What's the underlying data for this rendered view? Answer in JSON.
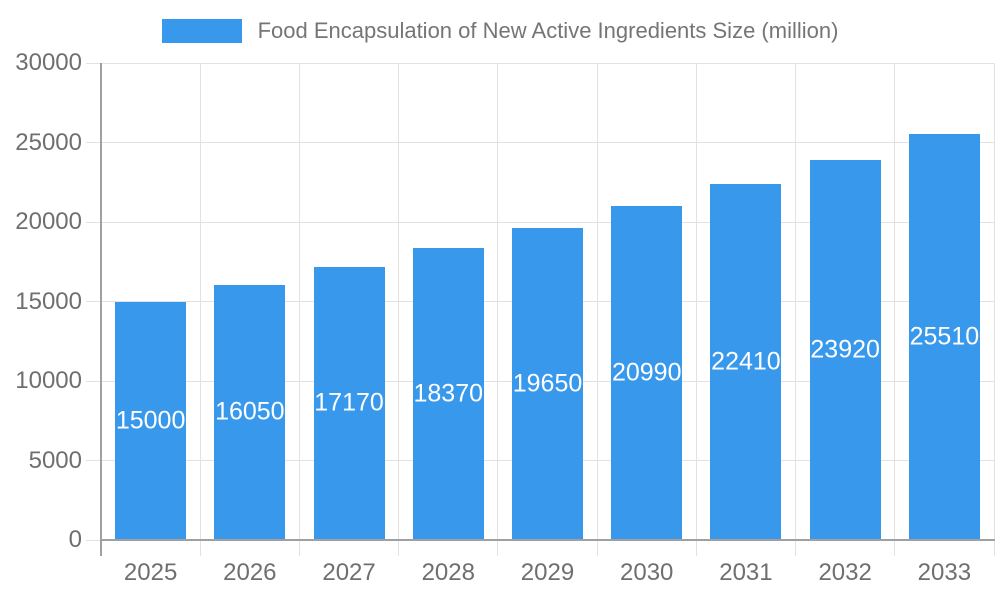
{
  "chart_data": {
    "type": "bar",
    "title": "Food Encapsulation of New Active Ingredients Size (million)",
    "categories": [
      "2025",
      "2026",
      "2027",
      "2028",
      "2029",
      "2030",
      "2031",
      "2032",
      "2033"
    ],
    "values": [
      15000,
      16050,
      17170,
      18370,
      19650,
      20990,
      22410,
      23920,
      25510
    ],
    "xlabel": "",
    "ylabel": "",
    "ylim": [
      0,
      30000
    ],
    "yticks": [
      0,
      5000,
      10000,
      15000,
      20000,
      25000,
      30000
    ],
    "grid": "both",
    "legend_position": "top",
    "bar_labels_inside": true,
    "colors": {
      "bar": "#3898EC",
      "bar_label_text": "#FFFFFF",
      "axis_label_text": "#6F6F6F",
      "title_text": "#757575",
      "gridline": "#E2E2E2",
      "axis_line": "#A0A0A0",
      "background": "#FFFFFF"
    }
  }
}
